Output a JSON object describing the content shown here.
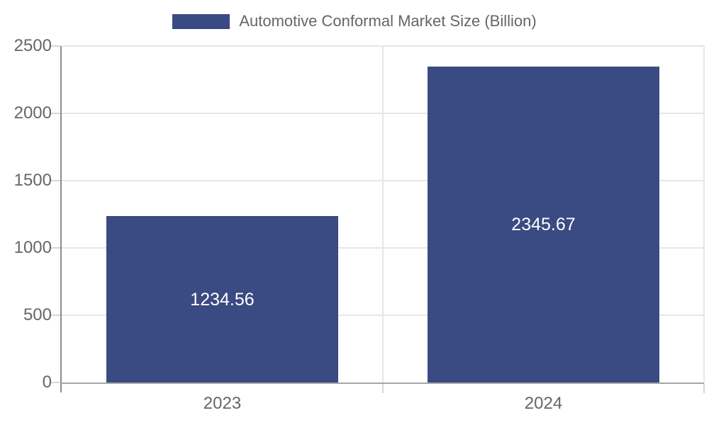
{
  "legend": {
    "label": "Automotive Conformal Market Size (Billion)"
  },
  "colors": {
    "bar": "#3A4A82",
    "axis_text": "#666666",
    "bar_label_text": "#FFFFFF",
    "gridline": "#E6E6E6",
    "y_axis_line": "#8C8C8C",
    "x_axis_line": "#A6A6A6",
    "tick": "#D6D6D6"
  },
  "chart_data": {
    "type": "bar",
    "title": "Automotive Conformal Market Size (Billion)",
    "categories": [
      "2023",
      "2024"
    ],
    "series": [
      {
        "name": "Automotive Conformal Market Size (Billion)",
        "values": [
          1234.56,
          2345.67
        ],
        "value_labels": [
          "1234.56",
          "2345.67"
        ],
        "color": "#3A4A82"
      }
    ],
    "xlabel": "",
    "ylabel": "",
    "ylim": [
      0,
      2500
    ],
    "yticks": [
      0,
      500,
      1000,
      1500,
      2000,
      2500
    ],
    "grid": true,
    "legend_position": "top-center",
    "bar_width_fraction": 0.72,
    "value_label_placement": "center-inside",
    "value_label_color": "#FFFFFF"
  }
}
